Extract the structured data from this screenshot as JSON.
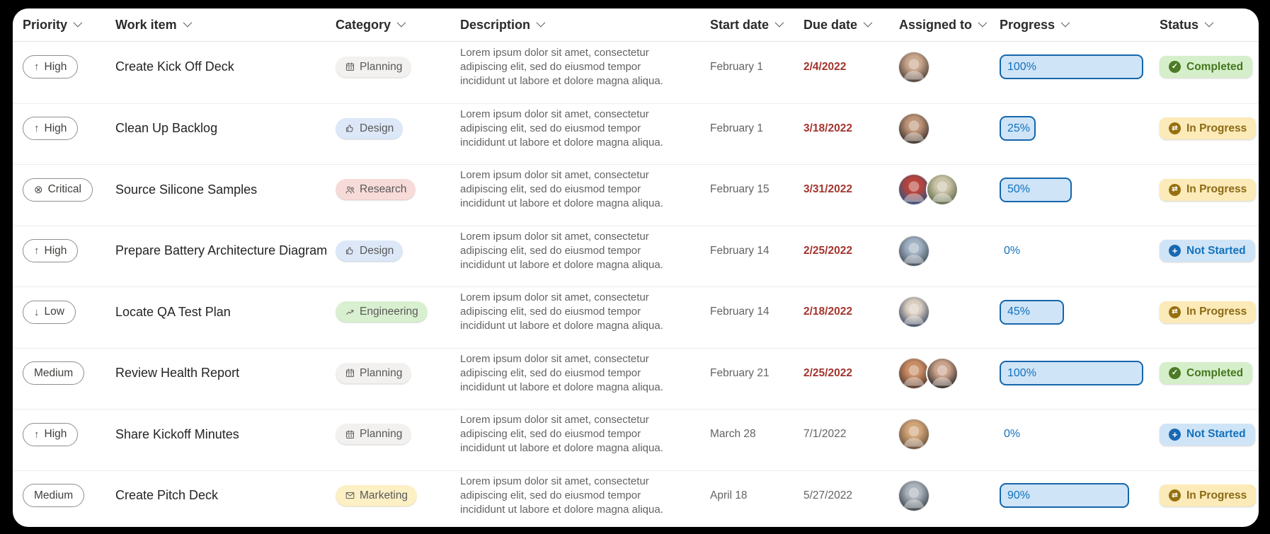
{
  "colors": {
    "canvas_background": "#000000",
    "card_background": "#ffffff",
    "overdue_red": "#a4342e",
    "progress_fill": "#cfe4f7",
    "progress_border": "#1566ab",
    "progress_text": "#1272bd",
    "status_completed_bg": "#d5efca",
    "status_completed_fg": "#45761f",
    "status_in_progress_bg": "#fceab8",
    "status_in_progress_fg": "#8a6a16",
    "status_not_started_bg": "#cfe4f7",
    "status_not_started_fg": "#1272bd",
    "chip_planning_bg": "#f2f1f0",
    "chip_design_bg": "#dce8f8",
    "chip_research_bg": "#f7dbd9",
    "chip_engineering_bg": "#d9f0d0",
    "chip_marketing_bg": "#fdf0c5"
  },
  "table": {
    "columns": [
      {
        "key": "priority",
        "label": "Priority"
      },
      {
        "key": "work_item",
        "label": "Work item"
      },
      {
        "key": "category",
        "label": "Category"
      },
      {
        "key": "description",
        "label": "Description"
      },
      {
        "key": "start_date",
        "label": "Start date"
      },
      {
        "key": "due_date",
        "label": "Due date"
      },
      {
        "key": "assigned_to",
        "label": "Assigned to"
      },
      {
        "key": "progress",
        "label": "Progress"
      },
      {
        "key": "status",
        "label": "Status"
      }
    ]
  },
  "rows": [
    {
      "priority": {
        "label": "High",
        "icon": "arrow-up-icon",
        "glyph": "↑"
      },
      "title": "Create Kick Off Deck",
      "category": {
        "label": "Planning",
        "key": "chip-planning",
        "icon": "calendar-icon",
        "icon_ref": "#icon-calendar"
      },
      "description": "Lorem ipsum dolor sit amet, consectetur adipiscing elit, sed do eiusmod tempor incididunt ut labore et dolore magna aliqua.",
      "start_date": "February 1",
      "due_date": "2/4/2022",
      "due_class": "overdue",
      "assigned": {
        "avatars": [
          {
            "name": "avatar-photo",
            "c1": "#c9a68c",
            "c2": "#4b3e39"
          }
        ]
      },
      "progress": {
        "pct": 100,
        "label": "100%"
      },
      "status": {
        "label": "Completed",
        "key": "status-completed",
        "icon": "check-circle-icon",
        "glyph": "✓"
      }
    },
    {
      "priority": {
        "label": "High",
        "icon": "arrow-up-icon",
        "glyph": "↑"
      },
      "title": "Clean Up Backlog",
      "category": {
        "label": "Design",
        "key": "chip-design",
        "icon": "thumbs-up-icon",
        "icon_ref": "#icon-like"
      },
      "description": "Lorem ipsum dolor sit amet, consectetur adipiscing elit, sed do eiusmod tempor incididunt ut labore et dolore magna aliqua.",
      "start_date": "February 1",
      "due_date": "3/18/2022",
      "due_class": "overdue",
      "assigned": {
        "avatars": [
          {
            "name": "avatar-photo",
            "c1": "#bd9478",
            "c2": "#3a2f2b"
          }
        ]
      },
      "progress": {
        "pct": 25,
        "label": "25%"
      },
      "status": {
        "label": "In Progress",
        "key": "status-in-progress",
        "icon": "sync-circle-icon",
        "glyph": "⇄"
      }
    },
    {
      "priority": {
        "label": "Critical",
        "icon": "circle-x-icon",
        "glyph": "⊗"
      },
      "title": "Source Silicone Samples",
      "category": {
        "label": "Research",
        "key": "chip-research",
        "icon": "people-icon",
        "icon_ref": "#icon-people"
      },
      "description": "Lorem ipsum dolor sit amet, consectetur adipiscing elit, sed do eiusmod tempor incididunt ut labore et dolore magna aliqua.",
      "start_date": "February 15",
      "due_date": "3/31/2022",
      "due_class": "overdue",
      "assigned": {
        "avatars": [
          {
            "name": "avatar-photo",
            "c1": "#b8443a",
            "c2": "#33527d"
          },
          {
            "name": "avatar-photo",
            "c1": "#c9c2a6",
            "c2": "#5d6b4a"
          }
        ]
      },
      "progress": {
        "pct": 50,
        "label": "50%"
      },
      "status": {
        "label": "In Progress",
        "key": "status-in-progress",
        "icon": "sync-circle-icon",
        "glyph": "⇄"
      }
    },
    {
      "priority": {
        "label": "High",
        "icon": "arrow-up-icon",
        "glyph": "↑"
      },
      "title": "Prepare Battery Architecture Diagram",
      "category": {
        "label": "Design",
        "key": "chip-design",
        "icon": "thumbs-up-icon",
        "icon_ref": "#icon-like"
      },
      "description": "Lorem ipsum dolor sit amet, consectetur adipiscing elit, sed do eiusmod tempor incididunt ut labore et dolore magna aliqua.",
      "start_date": "February 14",
      "due_date": "2/25/2022",
      "due_class": "overdue",
      "assigned": {
        "avatars": [
          {
            "name": "avatar-photo",
            "c1": "#9fb0c2",
            "c2": "#46505a"
          }
        ]
      },
      "progress": {
        "pct": 0,
        "label": "0%"
      },
      "status": {
        "label": "Not Started",
        "key": "status-not-started",
        "icon": "plus-circle-icon",
        "glyph": "+"
      }
    },
    {
      "priority": {
        "label": "Low",
        "icon": "arrow-down-icon",
        "glyph": "↓"
      },
      "title": "Locate QA Test Plan",
      "category": {
        "label": "Engineering",
        "key": "chip-engineering",
        "icon": "trend-up-icon",
        "icon_ref": "#icon-trend"
      },
      "description": "Lorem ipsum dolor sit amet, consectetur adipiscing elit, sed do eiusmod tempor incididunt ut labore et dolore magna aliqua.",
      "start_date": "February 14",
      "due_date": "2/18/2022",
      "due_class": "overdue",
      "assigned": {
        "avatars": [
          {
            "name": "avatar-photo",
            "c1": "#d9cdbf",
            "c2": "#3f4a63"
          }
        ]
      },
      "progress": {
        "pct": 45,
        "label": "45%"
      },
      "status": {
        "label": "In Progress",
        "key": "status-in-progress",
        "icon": "sync-circle-icon",
        "glyph": "⇄"
      }
    },
    {
      "priority": {
        "label": "Medium",
        "icon": "",
        "glyph": ""
      },
      "title": "Review Health Report",
      "category": {
        "label": "Planning",
        "key": "chip-planning",
        "icon": "calendar-icon",
        "icon_ref": "#icon-calendar"
      },
      "description": "Lorem ipsum dolor sit amet, consectetur adipiscing elit, sed do eiusmod tempor incididunt ut labore et dolore magna aliqua.",
      "start_date": "February 21",
      "due_date": "2/25/2022",
      "due_class": "overdue",
      "assigned": {
        "avatars": [
          {
            "name": "avatar-photo",
            "c1": "#c98d66",
            "c2": "#54382c"
          },
          {
            "name": "avatar-photo",
            "c1": "#caa18a",
            "c2": "#2f2a28"
          }
        ]
      },
      "progress": {
        "pct": 100,
        "label": "100%"
      },
      "status": {
        "label": "Completed",
        "key": "status-completed",
        "icon": "check-circle-icon",
        "glyph": "✓"
      }
    },
    {
      "priority": {
        "label": "High",
        "icon": "arrow-up-icon",
        "glyph": "↑"
      },
      "title": "Share Kickoff Minutes",
      "category": {
        "label": "Planning",
        "key": "chip-planning",
        "icon": "calendar-icon",
        "icon_ref": "#icon-calendar"
      },
      "description": "Lorem ipsum dolor sit amet, consectetur adipiscing elit, sed do eiusmod tempor incididunt ut labore et dolore magna aliqua.",
      "start_date": "March 28",
      "due_date": "7/1/2022",
      "due_class": "normal",
      "assigned": {
        "avatars": [
          {
            "name": "avatar-photo",
            "c1": "#cfa478",
            "c2": "#6b4f3a"
          }
        ]
      },
      "progress": {
        "pct": 0,
        "label": "0%"
      },
      "status": {
        "label": "Not Started",
        "key": "status-not-started",
        "icon": "plus-circle-icon",
        "glyph": "+"
      }
    },
    {
      "priority": {
        "label": "Medium",
        "icon": "",
        "glyph": ""
      },
      "title": "Create Pitch Deck",
      "category": {
        "label": "Marketing",
        "key": "chip-marketing",
        "icon": "mail-icon",
        "icon_ref": "#icon-mail"
      },
      "description": "Lorem ipsum dolor sit amet, consectetur adipiscing elit, sed do eiusmod tempor incididunt ut labore et dolore magna aliqua.",
      "start_date": "April 18",
      "due_date": "5/27/2022",
      "due_class": "normal",
      "assigned": {
        "avatars": [
          {
            "name": "avatar-photo",
            "c1": "#a9b2ba",
            "c2": "#3c444c"
          }
        ]
      },
      "progress": {
        "pct": 90,
        "label": "90%"
      },
      "status": {
        "label": "In Progress",
        "key": "status-in-progress",
        "icon": "sync-circle-icon",
        "glyph": "⇄"
      }
    }
  ]
}
